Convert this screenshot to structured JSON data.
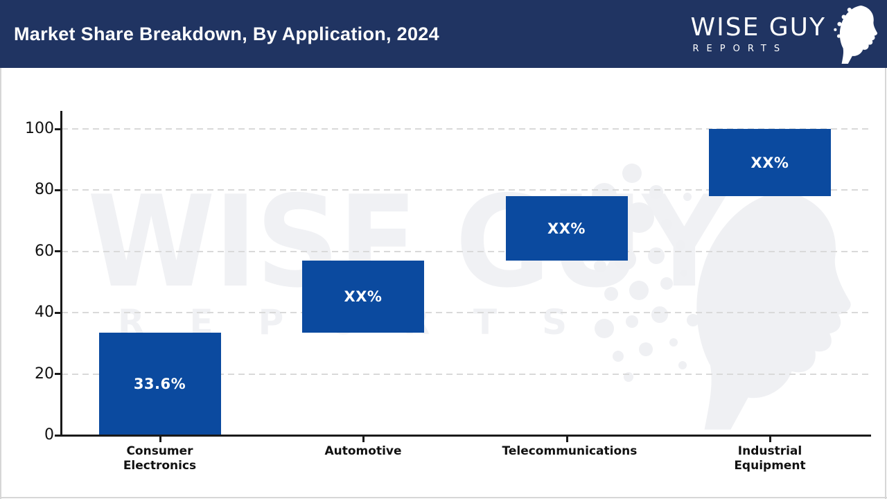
{
  "header": {
    "title": "Market Share Breakdown, By Application, 2024",
    "logo": {
      "line1": "WISE GUY",
      "line2": "REPORTS"
    }
  },
  "watermark": {
    "line1": "WISE GUY",
    "line2": "REPORTS"
  },
  "chart_data": {
    "type": "bar",
    "subtype": "waterfall",
    "title": "Market Share Breakdown, By Application, 2024",
    "categories": [
      "Consumer Electronics",
      "Automotive",
      "Telecommunications",
      "Industrial Equipment"
    ],
    "segments": [
      {
        "category": "Consumer Electronics",
        "start": 0,
        "end": 33.6,
        "label": "33.6%"
      },
      {
        "category": "Automotive",
        "start": 33.6,
        "end": 57,
        "label": "XX%"
      },
      {
        "category": "Telecommunications",
        "start": 57,
        "end": 78,
        "label": "XX%"
      },
      {
        "category": "Industrial Equipment",
        "start": 78,
        "end": 100,
        "label": "XX%"
      }
    ],
    "yticks": [
      0,
      20,
      40,
      60,
      80,
      100
    ],
    "ylim": [
      0,
      105.9
    ],
    "grid": "dashed horizontal",
    "legend": "none",
    "bar_color": "#0b4a9f",
    "bar_label_color": "#ffffff"
  },
  "colors": {
    "header_bg": "#203462",
    "bar": "#0b4a9f",
    "gridline": "#d9d9d9",
    "axis": "#1a1a1a",
    "watermark": "#f0f1f4",
    "frame": "#d6d6d6"
  }
}
